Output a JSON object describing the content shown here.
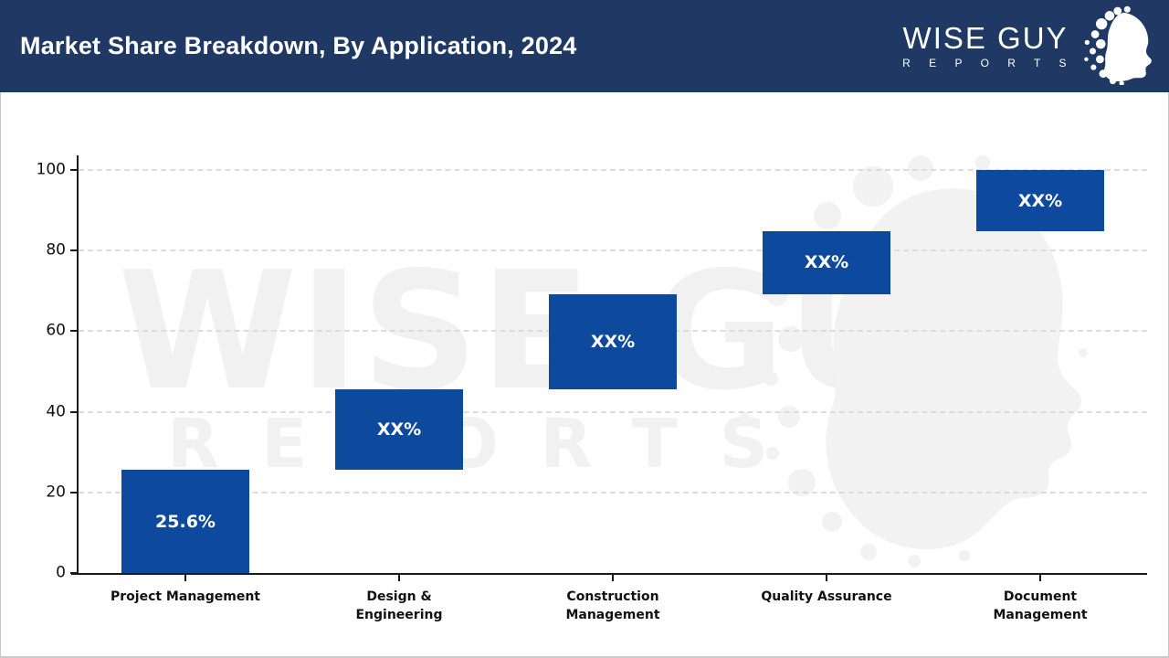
{
  "header": {
    "title": "Market Share Breakdown, By Application, 2024",
    "logo": {
      "line1": "WISE GUY",
      "line2": "R E P O R T S"
    }
  },
  "watermark": {
    "line1": "WISE GUY",
    "line2": "REPORTS"
  },
  "colors": {
    "header_bg": "#1f3864",
    "bar": "#0d4a9e",
    "bar_label": "#ffffff",
    "grid": "#dcdcdc",
    "axis": "#1a1a1a",
    "watermark": "#f1f1f1"
  },
  "chart_data": {
    "type": "bar",
    "subtype": "floating-waterfall",
    "title": "Market Share Breakdown, By Application, 2024",
    "categories": [
      "Project Management",
      "Design & Engineering",
      "Construction Management",
      "Quality Assurance",
      "Document Management"
    ],
    "category_label_lines": [
      [
        "Project Management"
      ],
      [
        "Design &",
        "Engineering"
      ],
      [
        "Construction",
        "Management"
      ],
      [
        "Quality Assurance"
      ],
      [
        "Document",
        "Management"
      ]
    ],
    "segments": [
      {
        "category": "Project Management",
        "start": 0,
        "end": 25.6,
        "label": "25.6%"
      },
      {
        "category": "Design & Engineering",
        "start": 25.6,
        "end": 45.6,
        "label": "XX%"
      },
      {
        "category": "Construction Management",
        "start": 45.6,
        "end": 69.2,
        "label": "XX%"
      },
      {
        "category": "Quality Assurance",
        "start": 69.2,
        "end": 84.8,
        "label": "XX%"
      },
      {
        "category": "Document Management",
        "start": 84.8,
        "end": 100,
        "label": "XX%"
      }
    ],
    "yticks": [
      0,
      20,
      40,
      60,
      80,
      100
    ],
    "ylim": [
      0,
      100
    ],
    "grid": "horizontal-dashed",
    "legend": "none",
    "bar_color": "#0d4a9e",
    "bar_label_color": "#ffffff"
  }
}
